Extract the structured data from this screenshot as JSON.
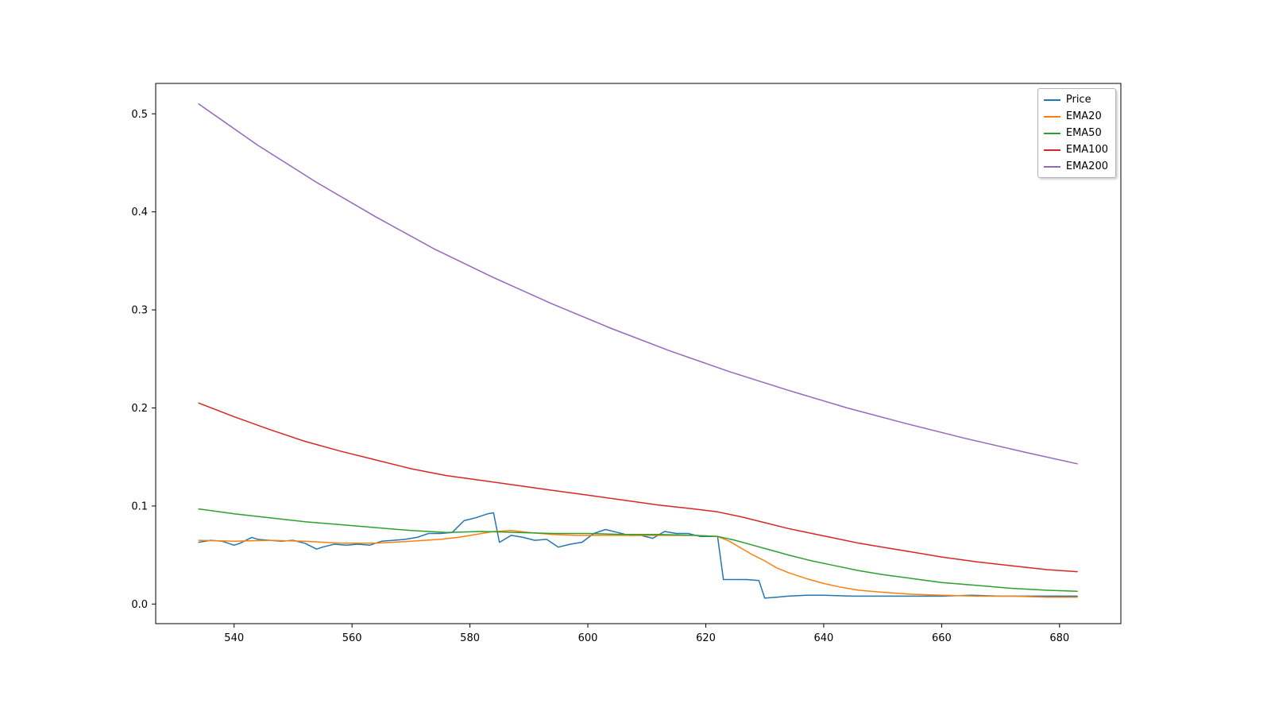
{
  "page": {
    "background": "#ffffff"
  },
  "chart_data": {
    "type": "line",
    "title": "",
    "xlabel": "",
    "ylabel": "",
    "grid": false,
    "legend_position": "upper right",
    "xlim": [
      526.7,
      690.4
    ],
    "ylim": [
      -0.02,
      0.531
    ],
    "xticks": [
      540,
      560,
      580,
      600,
      620,
      640,
      660,
      680
    ],
    "xtick_labels": [
      "540",
      "560",
      "580",
      "600",
      "620",
      "640",
      "660",
      "680"
    ],
    "yticks": [
      0.0,
      0.1,
      0.2,
      0.3,
      0.4,
      0.5
    ],
    "ytick_labels": [
      "0.0",
      "0.1",
      "0.2",
      "0.3",
      "0.4",
      "0.5"
    ],
    "series": [
      {
        "name": "Price",
        "color": "#1f77b4",
        "x": [
          534,
          536,
          538,
          540,
          541,
          543,
          544,
          546,
          548,
          550,
          552,
          554,
          555,
          557,
          559,
          561,
          563,
          565,
          567,
          569,
          571,
          573,
          575,
          577,
          579,
          581,
          583,
          584,
          585,
          587,
          589,
          591,
          593,
          595,
          597,
          599,
          601,
          603,
          605,
          607,
          609,
          611,
          613,
          615,
          617,
          619,
          621,
          622,
          623,
          625,
          627,
          629,
          630,
          632,
          634,
          637,
          640,
          645,
          650,
          655,
          660,
          665,
          670,
          675,
          680,
          683
        ],
        "y": [
          0.063,
          0.065,
          0.064,
          0.06,
          0.062,
          0.068,
          0.066,
          0.065,
          0.064,
          0.065,
          0.062,
          0.056,
          0.058,
          0.061,
          0.06,
          0.061,
          0.06,
          0.064,
          0.065,
          0.066,
          0.068,
          0.072,
          0.072,
          0.073,
          0.085,
          0.088,
          0.092,
          0.093,
          0.063,
          0.07,
          0.068,
          0.065,
          0.066,
          0.058,
          0.061,
          0.063,
          0.072,
          0.076,
          0.073,
          0.07,
          0.07,
          0.067,
          0.074,
          0.072,
          0.072,
          0.069,
          0.069,
          0.069,
          0.025,
          0.025,
          0.025,
          0.024,
          0.006,
          0.007,
          0.008,
          0.009,
          0.009,
          0.008,
          0.008,
          0.008,
          0.008,
          0.009,
          0.008,
          0.008,
          0.008,
          0.008
        ]
      },
      {
        "name": "EMA20",
        "color": "#ff7f0e",
        "x": [
          534,
          540,
          546,
          552,
          558,
          564,
          570,
          575,
          578,
          581,
          584,
          587,
          590,
          594,
          598,
          603,
          608,
          613,
          618,
          622,
          624,
          626,
          628,
          630,
          632,
          634,
          637,
          640,
          643,
          646,
          650,
          655,
          660,
          666,
          672,
          678,
          683
        ],
        "y": [
          0.065,
          0.064,
          0.065,
          0.064,
          0.062,
          0.062,
          0.064,
          0.066,
          0.068,
          0.071,
          0.074,
          0.075,
          0.073,
          0.071,
          0.07,
          0.07,
          0.07,
          0.07,
          0.07,
          0.069,
          0.064,
          0.057,
          0.05,
          0.044,
          0.037,
          0.032,
          0.026,
          0.021,
          0.017,
          0.014,
          0.012,
          0.01,
          0.009,
          0.008,
          0.008,
          0.007,
          0.007
        ]
      },
      {
        "name": "EMA50",
        "color": "#2ca02c",
        "x": [
          534,
          540,
          546,
          552,
          558,
          564,
          570,
          576,
          582,
          588,
          594,
          600,
          606,
          612,
          618,
          622,
          625,
          628,
          631,
          634,
          638,
          642,
          646,
          650,
          655,
          660,
          666,
          672,
          678,
          683
        ],
        "y": [
          0.097,
          0.092,
          0.088,
          0.084,
          0.081,
          0.078,
          0.075,
          0.073,
          0.074,
          0.073,
          0.072,
          0.072,
          0.071,
          0.071,
          0.07,
          0.069,
          0.065,
          0.06,
          0.055,
          0.05,
          0.044,
          0.039,
          0.034,
          0.03,
          0.026,
          0.022,
          0.019,
          0.016,
          0.014,
          0.013
        ]
      },
      {
        "name": "EMA100",
        "color": "#d62728",
        "x": [
          534,
          540,
          546,
          552,
          558,
          564,
          570,
          576,
          582,
          588,
          594,
          600,
          606,
          612,
          618,
          622,
          626,
          630,
          634,
          638,
          642,
          646,
          650,
          655,
          660,
          666,
          672,
          678,
          683
        ],
        "y": [
          0.205,
          0.191,
          0.178,
          0.166,
          0.156,
          0.147,
          0.138,
          0.131,
          0.126,
          0.121,
          0.116,
          0.111,
          0.106,
          0.101,
          0.097,
          0.094,
          0.089,
          0.083,
          0.077,
          0.072,
          0.067,
          0.062,
          0.058,
          0.053,
          0.048,
          0.043,
          0.039,
          0.035,
          0.033
        ]
      },
      {
        "name": "EMA200",
        "color": "#9467bd",
        "x": [
          534,
          544,
          554,
          564,
          574,
          584,
          594,
          604,
          614,
          624,
          634,
          644,
          654,
          664,
          674,
          683
        ],
        "y": [
          0.51,
          0.468,
          0.43,
          0.395,
          0.362,
          0.333,
          0.306,
          0.281,
          0.258,
          0.237,
          0.218,
          0.2,
          0.184,
          0.169,
          0.155,
          0.143
        ]
      }
    ]
  }
}
